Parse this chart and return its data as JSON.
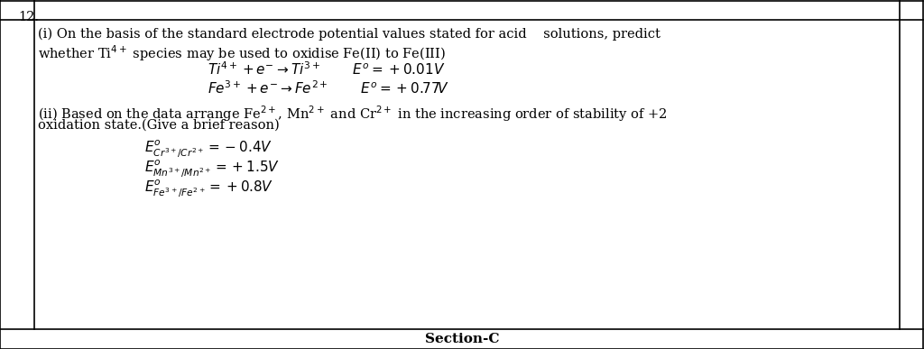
{
  "background_color": "#ffffff",
  "border_color": "#000000",
  "question_number": "12.",
  "section_text": "Section-C",
  "font_size_main": 10.5,
  "font_size_eq": 11,
  "font_size_section": 11
}
